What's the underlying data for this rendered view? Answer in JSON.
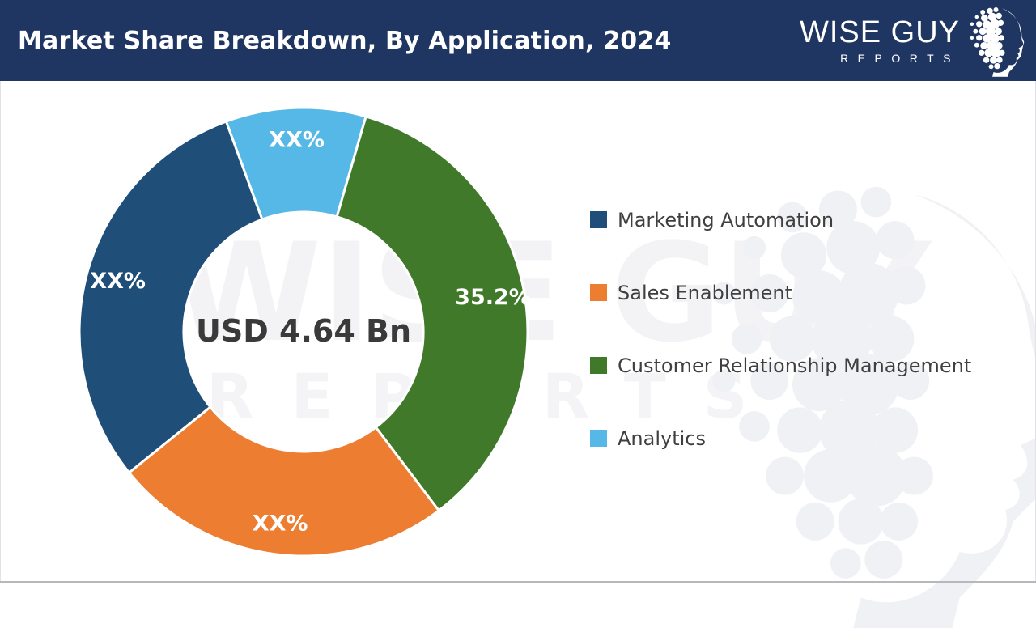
{
  "header": {
    "title": "Market Share Breakdown, By Application, 2024",
    "background_color": "#203662",
    "logo": {
      "line1": "WISE GUY",
      "line2": "REPORTS"
    }
  },
  "watermark": {
    "line1": "WISE GUY",
    "line2": "REPORTS"
  },
  "chart_data": {
    "type": "donut",
    "title": "Market Share Breakdown, By Application, 2024",
    "center_label": "USD 4.64 Bn",
    "legend_position": "right",
    "start_angle_deg": -20.2,
    "outer_radius": 277,
    "inner_radius": 148,
    "label_radius": 238,
    "separator_color": "#ffffff",
    "segments": [
      {
        "label": "Analytics",
        "value": 10.1,
        "display": "XX%",
        "color": "#55b8e6"
      },
      {
        "label": "Customer Relationship Management",
        "value": 35.2,
        "display": "35.2%",
        "color": "#41792b"
      },
      {
        "label": "Sales Enablement",
        "value": 24.5,
        "display": "XX%",
        "color": "#ed7d31"
      },
      {
        "label": "Marketing Automation",
        "value": 30.2,
        "display": "XX%",
        "color": "#1f4e79"
      }
    ]
  },
  "legend": {
    "items": [
      {
        "label": "Marketing Automation",
        "color": "#1f4e79"
      },
      {
        "label": "Sales Enablement",
        "color": "#ed7d31"
      },
      {
        "label": "Customer Relationship Management",
        "color": "#41792b"
      },
      {
        "label": "Analytics",
        "color": "#55b8e6"
      }
    ]
  }
}
